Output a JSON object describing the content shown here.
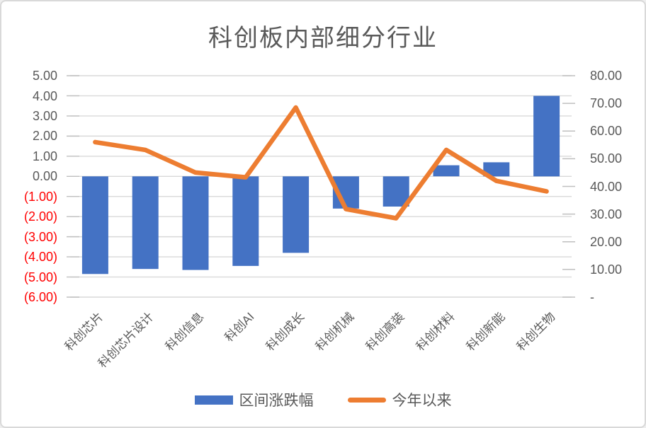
{
  "chart_data": {
    "type": "combo-bar-line",
    "title": "科创板内部细分行业",
    "categories": [
      "科创芯片",
      "科创芯片设计",
      "科创信息",
      "科创AI",
      "科创成长",
      "科创机械",
      "科创高装",
      "科创材料",
      "科创新能",
      "科创生物"
    ],
    "series": [
      {
        "name": "区间涨跌幅",
        "type": "bar",
        "axis": "left",
        "color": "#4472C4",
        "values": [
          -4.85,
          -4.6,
          -4.65,
          -4.45,
          -3.8,
          -1.6,
          -1.5,
          0.55,
          0.7,
          4.0
        ]
      },
      {
        "name": "今年以来",
        "type": "line",
        "axis": "right",
        "color": "#ED7D31",
        "values": [
          56.0,
          53.2,
          45.0,
          43.3,
          68.5,
          31.8,
          28.5,
          53.2,
          42.0,
          38.2
        ]
      }
    ],
    "left_axis": {
      "min": -6,
      "max": 5,
      "step": 1,
      "ticks": [
        "5.00",
        "4.00",
        "3.00",
        "2.00",
        "1.00",
        "0.00",
        "(1.00)",
        "(2.00)",
        "(3.00)",
        "(4.00)",
        "(5.00)",
        "(6.00)"
      ],
      "label_color": "#595959",
      "negative_label_color": "#FF0000"
    },
    "right_axis": {
      "min": 0,
      "max": 80,
      "step": 10,
      "ticks": [
        "80.00",
        "70.00",
        "60.00",
        "50.00",
        "40.00",
        "30.00",
        "20.00",
        "10.00",
        "-"
      ],
      "label_color": "#595959"
    },
    "grid": true,
    "gridline_color": "#D9D9D9",
    "tick_mark_color": "#BFBFBF",
    "legend_position": "bottom"
  }
}
